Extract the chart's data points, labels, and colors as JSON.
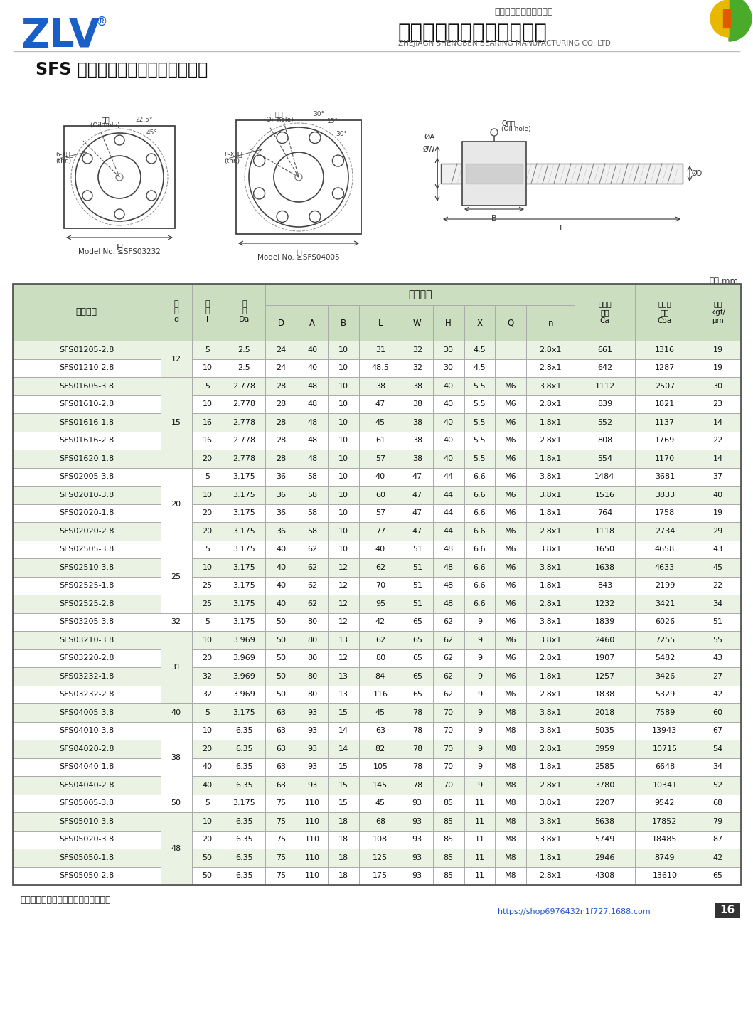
{
  "title_chinese": "SFS 静音型单螺母系列规格尺寸表",
  "company_name": "浙江圣本轴承制造有限公司",
  "company_subtitle": "直线传动轴承专业制造商",
  "company_english": "ZHEJIAGN SHENGBEN BEARING MANUFACTURING CO. LTD",
  "unit_label": "單位:mm",
  "note": "備註：雙螺帽下單前請詢問業務人員。",
  "url": "https://shop6976432n1f727.1688.com",
  "page_num": "16",
  "header_bg": "#ccdec0",
  "row_bg_light": "#eaf2e3",
  "row_bg_white": "#ffffff",
  "border_color": "#999999",
  "rows": [
    [
      "SFS01205-2.8",
      "12",
      "5",
      "2.5",
      "24",
      "40",
      "10",
      "31",
      "32",
      "30",
      "4.5",
      "",
      "2.8x1",
      "661",
      "1316",
      "19"
    ],
    [
      "SFS01210-2.8",
      "",
      "10",
      "2.5",
      "24",
      "40",
      "10",
      "48.5",
      "32",
      "30",
      "4.5",
      "",
      "2.8x1",
      "642",
      "1287",
      "19"
    ],
    [
      "SFS01605-3.8",
      "",
      "5",
      "2.778",
      "28",
      "48",
      "10",
      "38",
      "38",
      "40",
      "5.5",
      "M6",
      "3.8x1",
      "1112",
      "2507",
      "30"
    ],
    [
      "SFS01610-2.8",
      "",
      "10",
      "2.778",
      "28",
      "48",
      "10",
      "47",
      "38",
      "40",
      "5.5",
      "M6",
      "2.8x1",
      "839",
      "1821",
      "23"
    ],
    [
      "SFS01616-1.8",
      "15",
      "16",
      "2.778",
      "28",
      "48",
      "10",
      "45",
      "38",
      "40",
      "5.5",
      "M6",
      "1.8x1",
      "552",
      "1137",
      "14"
    ],
    [
      "SFS01616-2.8",
      "",
      "16",
      "2.778",
      "28",
      "48",
      "10",
      "61",
      "38",
      "40",
      "5.5",
      "M6",
      "2.8x1",
      "808",
      "1769",
      "22"
    ],
    [
      "SFS01620-1.8",
      "",
      "20",
      "2.778",
      "28",
      "48",
      "10",
      "57",
      "38",
      "40",
      "5.5",
      "M6",
      "1.8x1",
      "554",
      "1170",
      "14"
    ],
    [
      "SFS02005-3.8",
      "",
      "5",
      "3.175",
      "36",
      "58",
      "10",
      "40",
      "47",
      "44",
      "6.6",
      "M6",
      "3.8x1",
      "1484",
      "3681",
      "37"
    ],
    [
      "SFS02010-3.8",
      "",
      "10",
      "3.175",
      "36",
      "58",
      "10",
      "60",
      "47",
      "44",
      "6.6",
      "M6",
      "3.8x1",
      "1516",
      "3833",
      "40"
    ],
    [
      "SFS02020-1.8",
      "20",
      "20",
      "3.175",
      "36",
      "58",
      "10",
      "57",
      "47",
      "44",
      "6.6",
      "M6",
      "1.8x1",
      "764",
      "1758",
      "19"
    ],
    [
      "SFS02020-2.8",
      "",
      "20",
      "3.175",
      "36",
      "58",
      "10",
      "77",
      "47",
      "44",
      "6.6",
      "M6",
      "2.8x1",
      "1118",
      "2734",
      "29"
    ],
    [
      "SFS02505-3.8",
      "",
      "5",
      "3.175",
      "40",
      "62",
      "10",
      "40",
      "51",
      "48",
      "6.6",
      "M6",
      "3.8x1",
      "1650",
      "4658",
      "43"
    ],
    [
      "SFS02510-3.8",
      "",
      "10",
      "3.175",
      "40",
      "62",
      "12",
      "62",
      "51",
      "48",
      "6.6",
      "M6",
      "3.8x1",
      "1638",
      "4633",
      "45"
    ],
    [
      "SFS02525-1.8",
      "25",
      "25",
      "3.175",
      "40",
      "62",
      "12",
      "70",
      "51",
      "48",
      "6.6",
      "M6",
      "1.8x1",
      "843",
      "2199",
      "22"
    ],
    [
      "SFS02525-2.8",
      "",
      "25",
      "3.175",
      "40",
      "62",
      "12",
      "95",
      "51",
      "48",
      "6.6",
      "M6",
      "2.8x1",
      "1232",
      "3421",
      "34"
    ],
    [
      "SFS03205-3.8",
      "32",
      "5",
      "3.175",
      "50",
      "80",
      "12",
      "42",
      "65",
      "62",
      "9",
      "M6",
      "3.8x1",
      "1839",
      "6026",
      "51"
    ],
    [
      "SFS03210-3.8",
      "",
      "10",
      "3.969",
      "50",
      "80",
      "13",
      "62",
      "65",
      "62",
      "9",
      "M6",
      "3.8x1",
      "2460",
      "7255",
      "55"
    ],
    [
      "SFS03220-2.8",
      "",
      "20",
      "3.969",
      "50",
      "80",
      "12",
      "80",
      "65",
      "62",
      "9",
      "M6",
      "2.8x1",
      "1907",
      "5482",
      "43"
    ],
    [
      "SFS03232-1.8",
      "31",
      "32",
      "3.969",
      "50",
      "80",
      "13",
      "84",
      "65",
      "62",
      "9",
      "M6",
      "1.8x1",
      "1257",
      "3426",
      "27"
    ],
    [
      "SFS03232-2.8",
      "",
      "32",
      "3.969",
      "50",
      "80",
      "13",
      "116",
      "65",
      "62",
      "9",
      "M6",
      "2.8x1",
      "1838",
      "5329",
      "42"
    ],
    [
      "SFS04005-3.8",
      "40",
      "5",
      "3.175",
      "63",
      "93",
      "15",
      "45",
      "78",
      "70",
      "9",
      "M8",
      "3.8x1",
      "2018",
      "7589",
      "60"
    ],
    [
      "SFS04010-3.8",
      "",
      "10",
      "6.35",
      "63",
      "93",
      "14",
      "63",
      "78",
      "70",
      "9",
      "M8",
      "3.8x1",
      "5035",
      "13943",
      "67"
    ],
    [
      "SFS04020-2.8",
      "",
      "20",
      "6.35",
      "63",
      "93",
      "14",
      "82",
      "78",
      "70",
      "9",
      "M8",
      "2.8x1",
      "3959",
      "10715",
      "54"
    ],
    [
      "SFS04040-1.8",
      "38",
      "40",
      "6.35",
      "63",
      "93",
      "15",
      "105",
      "78",
      "70",
      "9",
      "M8",
      "1.8x1",
      "2585",
      "6648",
      "34"
    ],
    [
      "SFS04040-2.8",
      "",
      "40",
      "6.35",
      "63",
      "93",
      "15",
      "145",
      "78",
      "70",
      "9",
      "M8",
      "2.8x1",
      "3780",
      "10341",
      "52"
    ],
    [
      "SFS05005-3.8",
      "50",
      "5",
      "3.175",
      "75",
      "110",
      "15",
      "45",
      "93",
      "85",
      "11",
      "M8",
      "3.8x1",
      "2207",
      "9542",
      "68"
    ],
    [
      "SFS05010-3.8",
      "",
      "10",
      "6.35",
      "75",
      "110",
      "18",
      "68",
      "93",
      "85",
      "11",
      "M8",
      "3.8x1",
      "5638",
      "17852",
      "79"
    ],
    [
      "SFS05020-3.8",
      "",
      "20",
      "6.35",
      "75",
      "110",
      "18",
      "108",
      "93",
      "85",
      "11",
      "M8",
      "3.8x1",
      "5749",
      "18485",
      "87"
    ],
    [
      "SFS05050-1.8",
      "48",
      "50",
      "6.35",
      "75",
      "110",
      "18",
      "125",
      "93",
      "85",
      "11",
      "M8",
      "1.8x1",
      "2946",
      "8749",
      "42"
    ],
    [
      "SFS05050-2.8",
      "",
      "50",
      "6.35",
      "75",
      "110",
      "18",
      "175",
      "93",
      "85",
      "11",
      "M8",
      "2.8x1",
      "4308",
      "13610",
      "65"
    ]
  ],
  "merge_d_groups": [
    {
      "label": "12",
      "rows": [
        0,
        1
      ]
    },
    {
      "label": "15",
      "rows": [
        2,
        3,
        4,
        5,
        6
      ]
    },
    {
      "label": "20",
      "rows": [
        7,
        8,
        9,
        10
      ]
    },
    {
      "label": "25",
      "rows": [
        11,
        12,
        13,
        14
      ]
    },
    {
      "label": "32",
      "rows": [
        15
      ]
    },
    {
      "label": "31",
      "rows": [
        16,
        17,
        18,
        19
      ]
    },
    {
      "label": "40",
      "rows": [
        20
      ]
    },
    {
      "label": "38",
      "rows": [
        21,
        22,
        23,
        24
      ]
    },
    {
      "label": "50",
      "rows": [
        25
      ]
    },
    {
      "label": "48",
      "rows": [
        26,
        27,
        28,
        29
      ]
    }
  ]
}
